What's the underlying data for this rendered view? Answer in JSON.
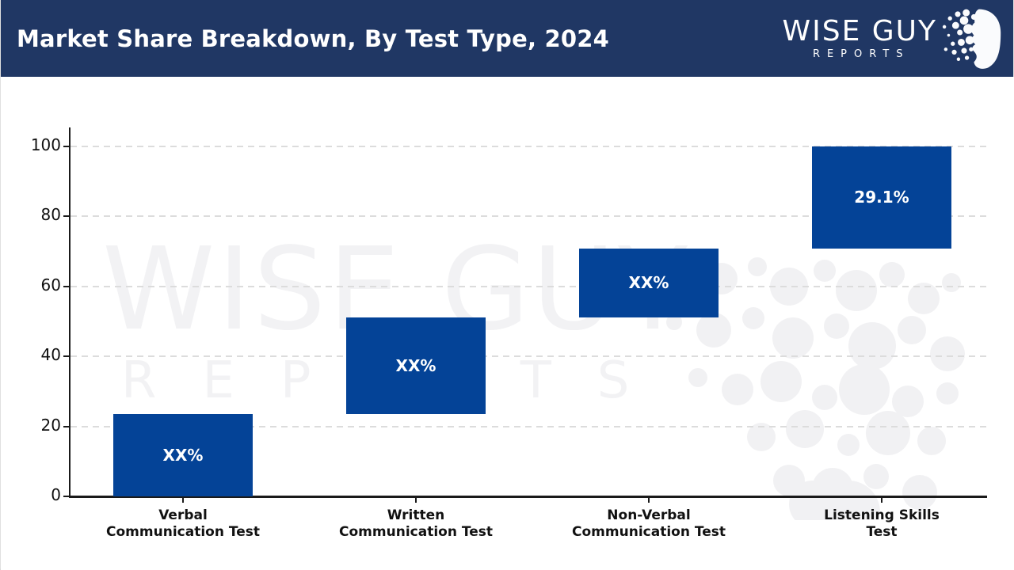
{
  "header": {
    "title": "Market Share Breakdown, By Test Type, 2024"
  },
  "logo": {
    "wordmark": "WISE GUY",
    "subtext": "REPORTS"
  },
  "watermark": {
    "line1": "WISE GUY",
    "line2": "REPORTS"
  },
  "chart_data": {
    "type": "bar",
    "subtype": "waterfall-floating-bars",
    "title": "Market Share Breakdown, By Test Type, 2024",
    "year": "2024",
    "categories": [
      "Verbal\nCommunication Test",
      "Written\nCommunication Test",
      "Non-Verbal\nCommunication Test",
      "Listening Skills\nTest"
    ],
    "bars": [
      {
        "category": "Verbal Communication Test",
        "start": 0,
        "end": 23.5,
        "value": 23.5,
        "label": "XX%"
      },
      {
        "category": "Written Communication Test",
        "start": 23.5,
        "end": 51.1,
        "value": 27.6,
        "label": "XX%"
      },
      {
        "category": "Non-Verbal Communication Test",
        "start": 51.1,
        "end": 70.9,
        "value": 19.8,
        "label": "XX%"
      },
      {
        "category": "Listening Skills Test",
        "start": 70.9,
        "end": 100,
        "value": 29.1,
        "label": "29.1%"
      }
    ],
    "xlabel": "",
    "ylabel": "",
    "ylim": [
      0,
      100
    ],
    "yticks": [
      0,
      20,
      40,
      60,
      80,
      100
    ],
    "grid": "horizontal-dashed",
    "legend": "none",
    "colors": {
      "bar": "#044397",
      "bar_label": "#ffffff",
      "header_bg": "#203764",
      "gridline": "#dcdcdc",
      "axis": "#1a1a1a",
      "watermark": "#f2f2f4"
    }
  }
}
